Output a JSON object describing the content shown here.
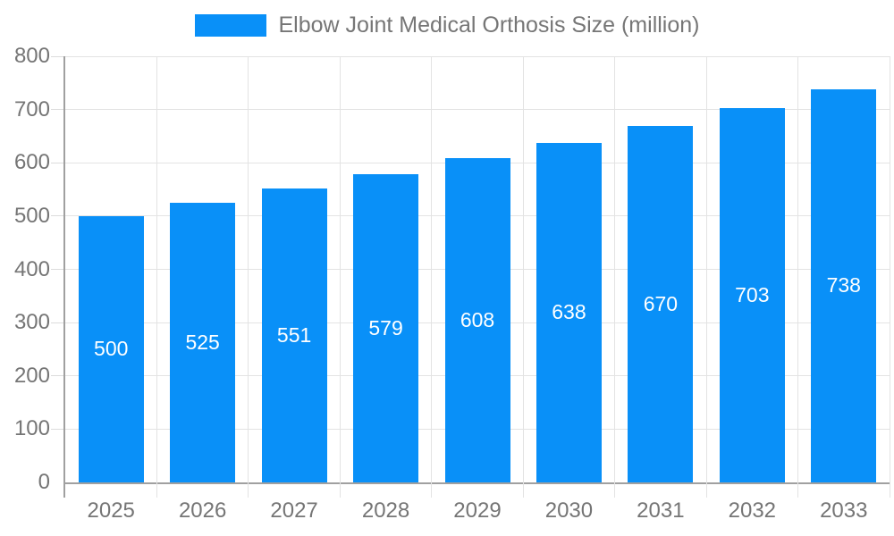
{
  "legend": {
    "label": "Elbow Joint Medical Orthosis Size (million)",
    "swatch_color": "#0990f8"
  },
  "chart_data": {
    "type": "bar",
    "title": "Elbow Joint Medical Orthosis Size (million)",
    "categories": [
      "2025",
      "2026",
      "2027",
      "2028",
      "2029",
      "2030",
      "2031",
      "2032",
      "2033"
    ],
    "values": [
      500,
      525,
      551,
      579,
      608,
      638,
      670,
      703,
      738
    ],
    "series_name": "Elbow Joint Medical Orthosis Size (million)",
    "xlabel": "",
    "ylabel": "",
    "ylim": [
      0,
      800
    ],
    "y_ticks": [
      0,
      100,
      200,
      300,
      400,
      500,
      600,
      700,
      800
    ],
    "grid": true,
    "legend_position": "top",
    "bar_color": "#0990f8",
    "value_label_color": "#ffffff",
    "axis_color": "#a0a0a0",
    "grid_color": "#e3e3e3",
    "tick_text_color": "#757575"
  }
}
